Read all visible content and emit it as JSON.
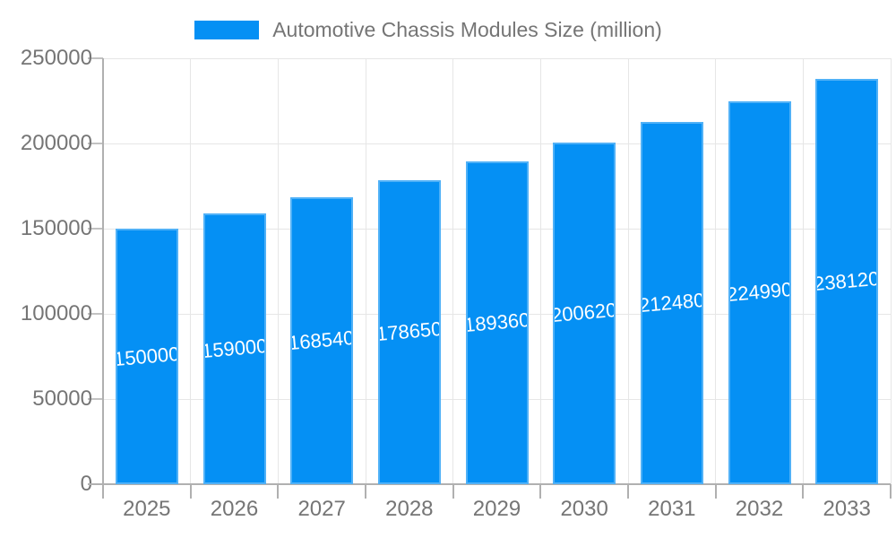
{
  "legend": {
    "label": "Automotive Chassis Modules Size (million)"
  },
  "chart_data": {
    "type": "bar",
    "title": "Automotive Chassis Modules Size (million)",
    "categories": [
      "2025",
      "2026",
      "2027",
      "2028",
      "2029",
      "2030",
      "2031",
      "2032",
      "2033"
    ],
    "values": [
      150000,
      159000,
      168540,
      178650,
      189360,
      200620,
      212480,
      224990,
      238120
    ],
    "xlabel": "",
    "ylabel": "",
    "ylim": [
      0,
      250000
    ],
    "ytick_step": 50000,
    "ytick_labels": [
      "0",
      "50000",
      "100000",
      "150000",
      "200000",
      "250000"
    ],
    "grid": true,
    "legend_position": "top",
    "bar_labels_visible": true,
    "colors": {
      "bar": "#0590f4",
      "bar_edge": "#50b1f7",
      "bar_label_text": "#ffffff",
      "grid": "#e6e6e6",
      "axis": "#b0b0b0",
      "text": "#757575"
    }
  }
}
